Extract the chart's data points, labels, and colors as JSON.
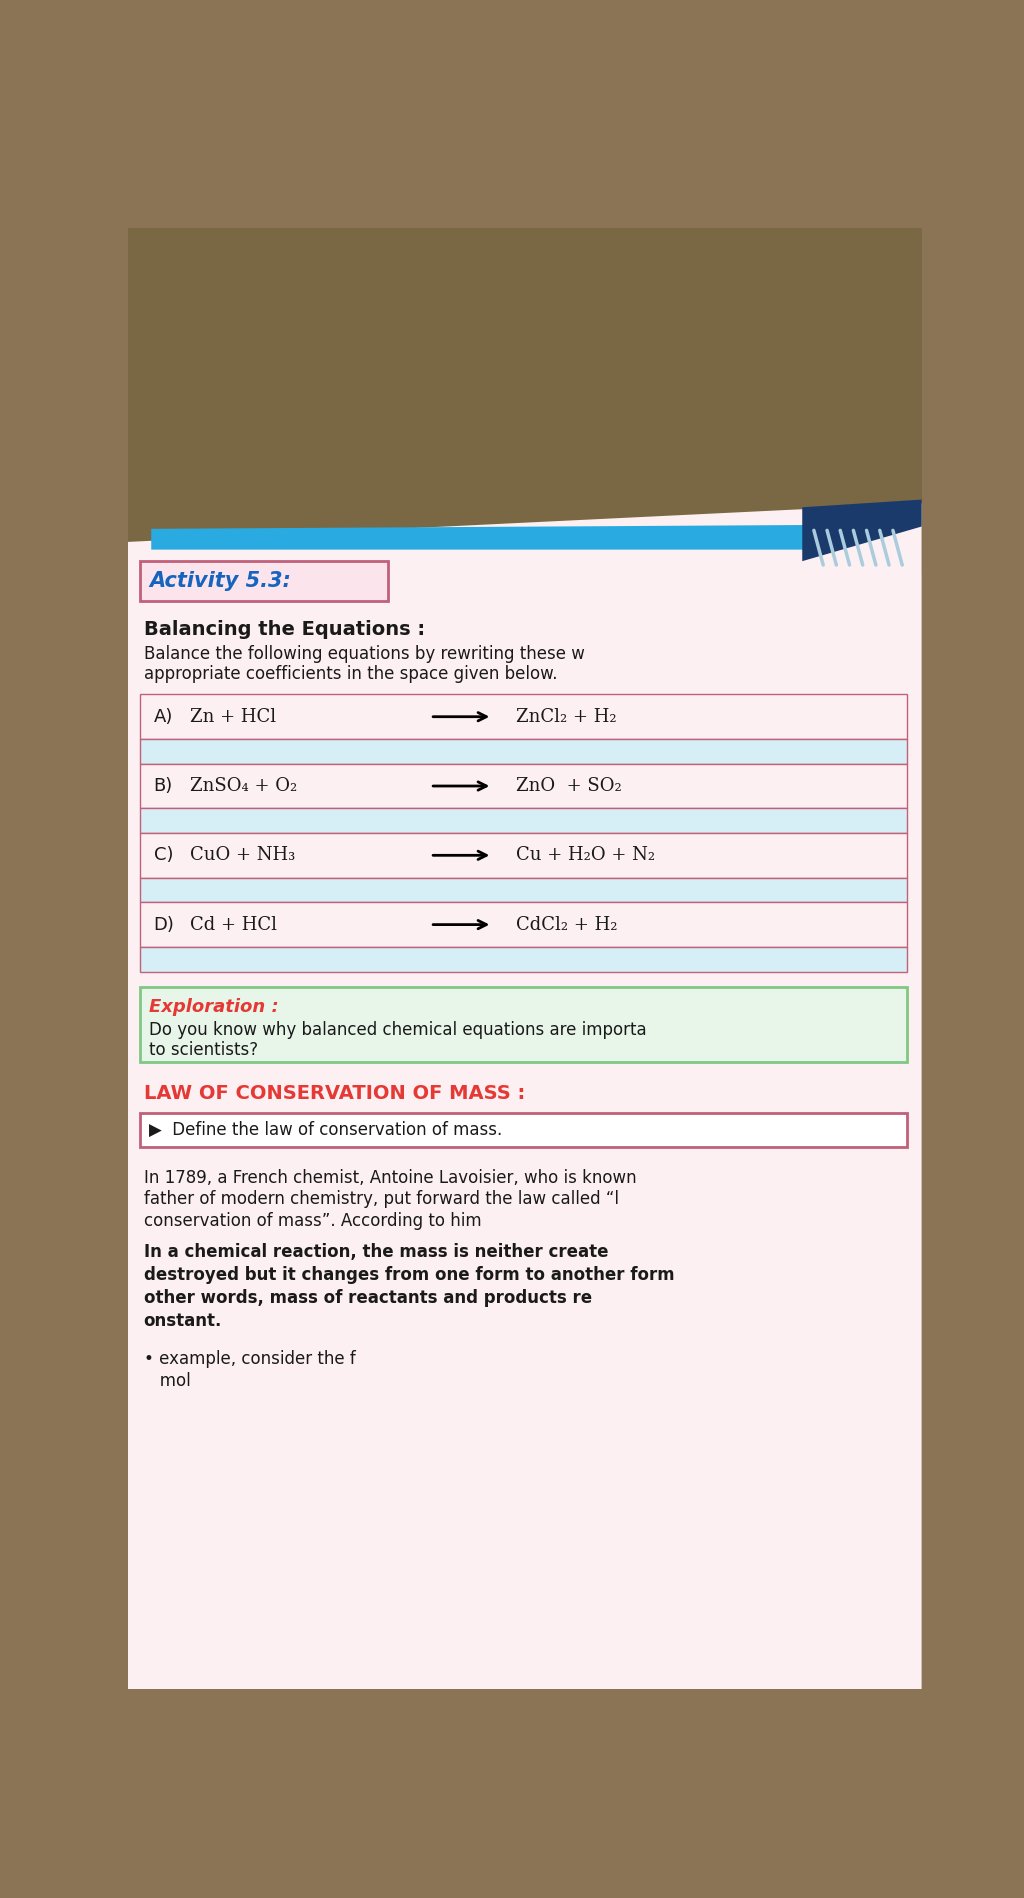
{
  "bg_color_top": "#7a6b50",
  "page_bg": "#fdf0f2",
  "activity_title": "Activity 5.3:",
  "section1_title": "Balancing the Equations :",
  "section1_text1": "Balance the following equations by rewriting these w",
  "section1_text2": "appropriate coefficients in the space given below.",
  "equations": [
    {
      "label": "A)",
      "reactants": "Zn + HCl",
      "products": "ZnCl₂ + H₂"
    },
    {
      "label": "B)",
      "reactants": "ZnSO₄ + O₂",
      "products": "ZnO  + SO₂"
    },
    {
      "label": "C)",
      "reactants": "CuO + NH₃",
      "products": "Cu + H₂O + N₂"
    },
    {
      "label": "D)",
      "reactants": "Cd + HCl",
      "products": "CdCl₂ + H₂"
    }
  ],
  "exploration_title": "Exploration :",
  "exploration_line1": "Do you know why balanced chemical equations are importa",
  "exploration_line2": "to scientists?",
  "law_title": "LAW OF CONSERVATION OF MASS :",
  "law_bullet": "▶  Define the law of conservation of mass.",
  "law_text1": "In 1789, a French chemist, Antoine Lavoisier, who is known",
  "law_text2": "father of modern chemistry, put forward the law called “l",
  "law_text3": "conservation of mass”. According to him",
  "law_bold1": "In a chemical reaction, the mass is neither create",
  "law_bold2": "destroyed but it changes from one form to another form",
  "law_bold3": "other words, mass of reactants and products re",
  "law_bold4": "onstant.",
  "footer_text1": "• example, consider the f",
  "footer_text2": "   mol",
  "header_bar_color": "#29abe2",
  "header_bar_dark": "#1a3a6b",
  "activity_box_bg": "#fce4ec",
  "equation_row_bg": "#fdf0f2",
  "equation_answer_bg": "#d6eef5",
  "exploration_bg": "#e8f5e9",
  "border_color": "#c0607a",
  "exploration_border": "#81c784",
  "text_color": "#1a1a1a",
  "exploration_title_color": "#e53935",
  "law_title_color": "#e53935",
  "activity_label_color": "#1565c0",
  "law_box_border": "#c0607a"
}
